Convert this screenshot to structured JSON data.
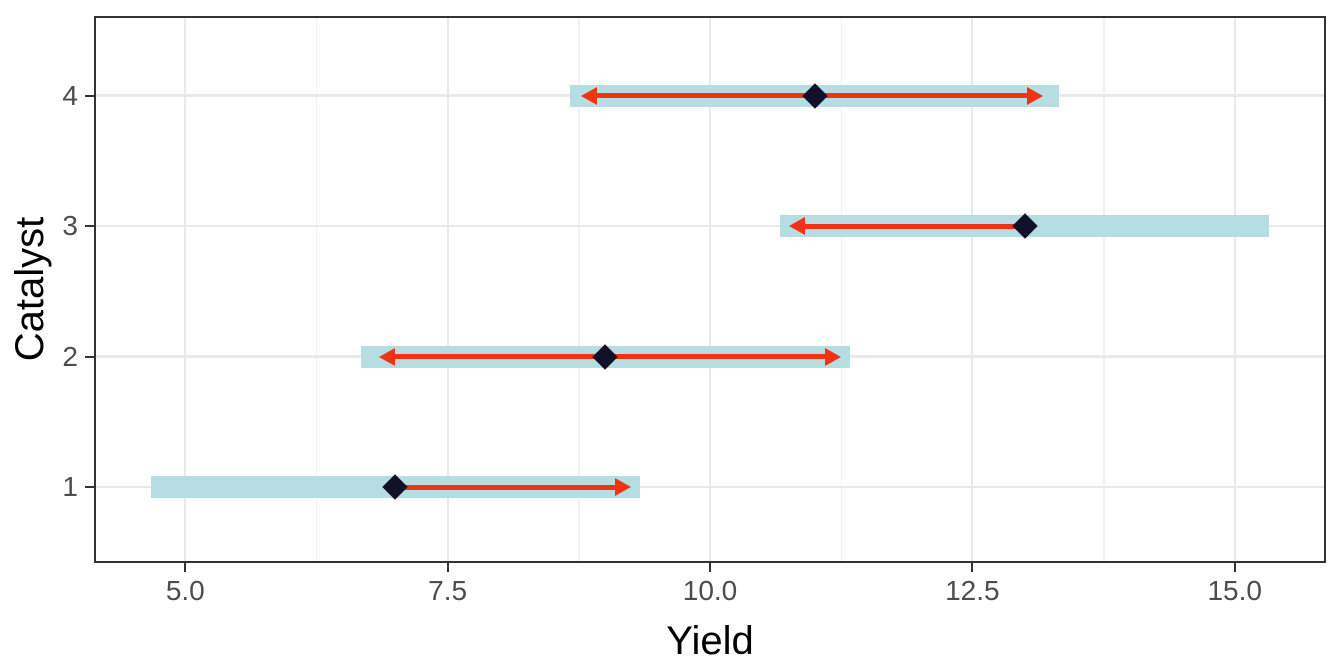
{
  "chart_data": {
    "type": "bar",
    "subtype": "horizontal-range-interval-arrow-plot",
    "orientation": "horizontal",
    "title": "",
    "xlabel": "Yield",
    "ylabel": "Catalyst",
    "xlim": [
      4.13,
      15.87
    ],
    "grid": true,
    "legend": "none",
    "x_axis": {
      "tick_values": [
        5.0,
        7.5,
        10.0,
        12.5,
        15.0
      ],
      "tick_labels": [
        "5.0",
        "7.5",
        "10.0",
        "12.5",
        "15.0"
      ],
      "minor_gridlines": [
        6.25,
        8.75,
        11.25,
        13.75
      ]
    },
    "y_axis": {
      "categories": [
        "1",
        "2",
        "3",
        "4"
      ]
    },
    "rows": [
      {
        "category": "4",
        "band_min": 8.67,
        "band_max": 13.33,
        "arrow_min": 8.77,
        "arrow_max": 13.17,
        "arrow_heads": "both",
        "point": 11.0
      },
      {
        "category": "3",
        "band_min": 10.67,
        "band_max": 15.33,
        "arrow_min": 10.75,
        "arrow_max": 13.0,
        "arrow_heads": "left",
        "point": 13.0
      },
      {
        "category": "2",
        "band_min": 6.67,
        "band_max": 11.33,
        "arrow_min": 6.85,
        "arrow_max": 11.25,
        "arrow_heads": "both",
        "point": 9.0
      },
      {
        "category": "1",
        "band_min": 4.67,
        "band_max": 9.33,
        "arrow_min": 7.0,
        "arrow_max": 9.25,
        "arrow_heads": "right",
        "point": 7.0
      }
    ],
    "colors": {
      "band": "#b6dde2",
      "arrow": "#f03314",
      "point": "#121129",
      "grid_major": "#e9e9e9",
      "grid_minor": "#f1f1f1",
      "panel_border": "#333333",
      "tick_mark": "#333333",
      "tick_label": "#4d4d4d",
      "axis_title": "#000000",
      "panel_background": "#ffffff"
    }
  }
}
